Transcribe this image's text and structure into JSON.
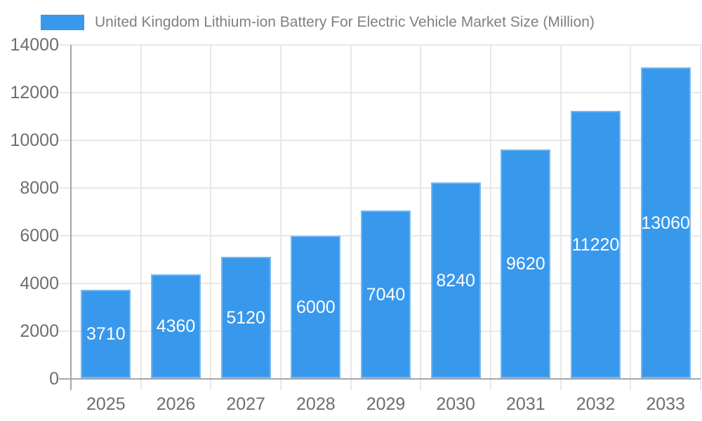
{
  "chart_data": {
    "type": "bar",
    "title": "United Kingdom Lithium-ion Battery For Electric Vehicle Market Size (Million)",
    "categories": [
      "2025",
      "2026",
      "2027",
      "2028",
      "2029",
      "2030",
      "2031",
      "2032",
      "2033"
    ],
    "values": [
      3710,
      4360,
      5120,
      6000,
      7040,
      8240,
      9620,
      11220,
      13060
    ],
    "xlabel": "",
    "ylabel": "",
    "ylim": [
      0,
      14000
    ],
    "yticks": [
      0,
      2000,
      4000,
      6000,
      8000,
      10000,
      12000,
      14000
    ],
    "grid": true,
    "legend_position": "top",
    "value_label_position": "inside-center"
  },
  "colors": {
    "bar_fill": "#3898EC",
    "bar_edge_highlight": "rgba(255,255,255,0.3)",
    "axis_line": "#A6A6A6",
    "gridline": "#E8E8E8",
    "axis_text": "#6E6E6E",
    "title_text": "#808080",
    "value_text": "#FFFFFF",
    "background": "#FFFFFF"
  }
}
